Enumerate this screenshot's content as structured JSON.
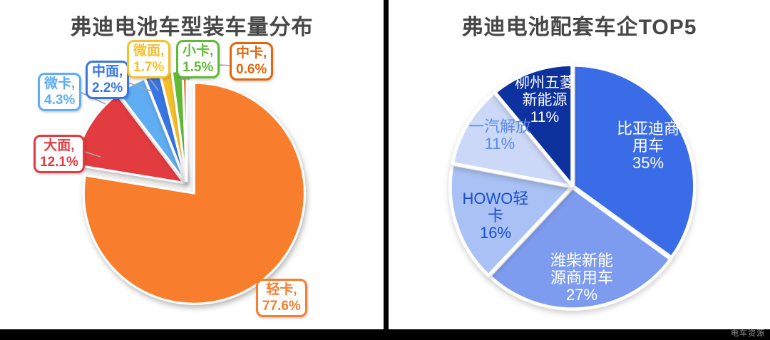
{
  "page": {
    "background": "#FFFFFF",
    "divider_color": "#000000",
    "bottom_bar_color": "#000000",
    "watermark": "电车资源"
  },
  "chart_data": [
    {
      "type": "pie",
      "title": "弗迪电池车型装车量分布",
      "unit": "%",
      "start_angle_deg": 0,
      "direction": "clockwise",
      "exploded": true,
      "label_style": "outside-callout-boxes",
      "legend": "none",
      "slices": [
        {
          "label": "轻卡",
          "value": 77.6,
          "color": "#F87E2D",
          "callout": "轻卡,\n77.6%"
        },
        {
          "label": "大面",
          "value": 12.1,
          "color": "#E23B41",
          "callout": "大面,\n12.1%"
        },
        {
          "label": "微卡",
          "value": 4.3,
          "color": "#5FADF2",
          "callout": "微卡,\n4.3%"
        },
        {
          "label": "中面",
          "value": 2.2,
          "color": "#3876E6",
          "callout": "中面,\n2.2%"
        },
        {
          "label": "微面",
          "value": 1.7,
          "color": "#F6C02C",
          "callout": "微面,\n1.7%"
        },
        {
          "label": "小卡",
          "value": 1.5,
          "color": "#5FBB36",
          "callout": "小卡,\n1.5%"
        },
        {
          "label": "中卡",
          "value": 0.6,
          "color": "#E2660C",
          "callout": "中卡,\n0.6%"
        }
      ]
    },
    {
      "type": "pie",
      "title": "弗迪电池配套车企TOP5",
      "unit": "%",
      "start_angle_deg": 0,
      "direction": "clockwise",
      "exploded": false,
      "label_style": "inside",
      "legend": "none",
      "slices": [
        {
          "label": "比亚迪商用车",
          "value": 35,
          "color": "#3B6CE7",
          "text_color": "#FFFFFF",
          "callout": "比亚迪商\n用车\n35%"
        },
        {
          "label": "潍柴新能源商用车",
          "value": 27,
          "color": "#7E9CEF",
          "text_color": "#FFFFFF",
          "callout": "潍柴新能\n源商用车\n27%"
        },
        {
          "label": "HOWO轻卡",
          "value": 16,
          "color": "#A9C1F4",
          "text_color": "#1D4ECC",
          "callout": "HOWO轻\n卡\n16%"
        },
        {
          "label": "一汽解放",
          "value": 11,
          "color": "#CBD8F7",
          "text_color": "#5B8BE8",
          "callout": "一汽解放\n11%"
        },
        {
          "label": "柳州五菱新能源",
          "value": 11,
          "color": "#11339E",
          "text_color": "#FFFFFF",
          "callout": "柳州五菱\n新能源\n11%"
        }
      ]
    }
  ]
}
